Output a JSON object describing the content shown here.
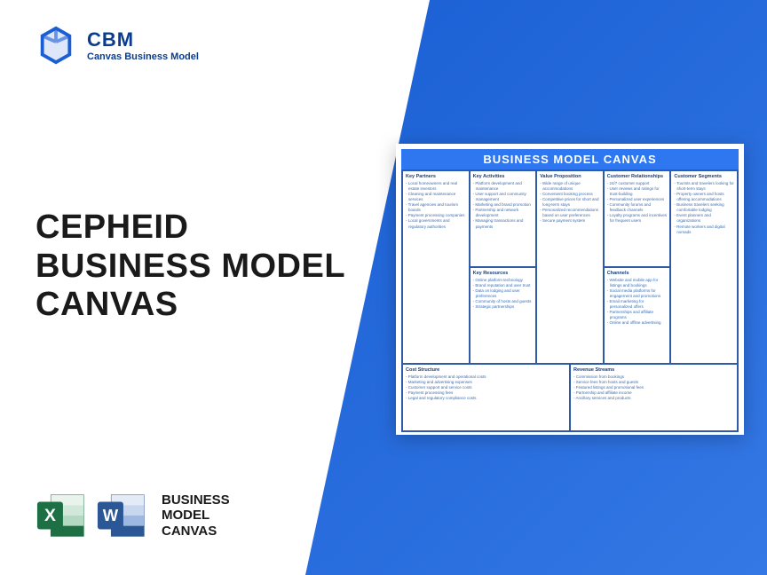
{
  "brand": {
    "title": "CBM",
    "subtitle": "Canvas Business Model",
    "logo_color": "#1a5fd4"
  },
  "main_title": "CEPHEID\nBUSINESS MODEL\nCANVAS",
  "footer": {
    "text": "BUSINESS\nMODEL\nCANVAS",
    "excel_color": "#1d7044",
    "word_color": "#2b5797"
  },
  "canvas": {
    "title": "BUSINESS MODEL CANVAS",
    "title_bg": "#2e77f0",
    "border_color": "#2e5aa8",
    "sections": {
      "kp": {
        "title": "Key Partners",
        "items": [
          "Local homeowners and real estate investors",
          "Cleaning and maintenance services",
          "Travel agencies and tourism boards",
          "Payment processing companies",
          "Local governments and regulatory authorities"
        ]
      },
      "ka": {
        "title": "Key Activities",
        "items": [
          "Platform development and maintenance",
          "User support and community management",
          "Marketing and brand promotion",
          "Partnership and network development",
          "Managing transactions and payments"
        ]
      },
      "kr": {
        "title": "Key Resources",
        "items": [
          "Online platform technology",
          "Brand reputation and user trust",
          "Data on lodging and user preferences",
          "Community of hosts and guests",
          "Strategic partnerships"
        ]
      },
      "vp": {
        "title": "Value Proposition",
        "items": [
          "Wide range of unique accommodations",
          "Convenient booking process",
          "Competitive prices for short and long-term stays",
          "Personalized recommendations based on user preferences",
          "Secure payment system"
        ]
      },
      "cr": {
        "title": "Customer Relationships",
        "items": [
          "24/7 customer support",
          "User reviews and ratings for trust-building",
          "Personalized user experiences",
          "Community forums and feedback channels",
          "Loyalty programs and incentives for frequent users"
        ]
      },
      "ch": {
        "title": "Channels",
        "items": [
          "Website and mobile app for listings and bookings",
          "Social media platforms for engagement and promotions",
          "Email marketing for personalized offers",
          "Partnerships and affiliate programs",
          "Online and offline advertising"
        ]
      },
      "cs": {
        "title": "Customer Segments",
        "items": [
          "Tourists and travelers looking for short-term stays",
          "Property owners and hosts offering accommodations",
          "Business travelers seeking comfortable lodging",
          "Event planners and organizations",
          "Remote workers and digital nomads"
        ]
      },
      "cost": {
        "title": "Cost Structure",
        "items": [
          "Platform development and operational costs",
          "Marketing and advertising expenses",
          "Customer support and service costs",
          "Payment processing fees",
          "Legal and regulatory compliance costs"
        ]
      },
      "rev": {
        "title": "Revenue Streams",
        "items": [
          "Commission from bookings",
          "Service fees from hosts and guests",
          "Featured listings and promotional fees",
          "Partnership and affiliate income",
          "Ancillary services and products"
        ]
      }
    }
  }
}
